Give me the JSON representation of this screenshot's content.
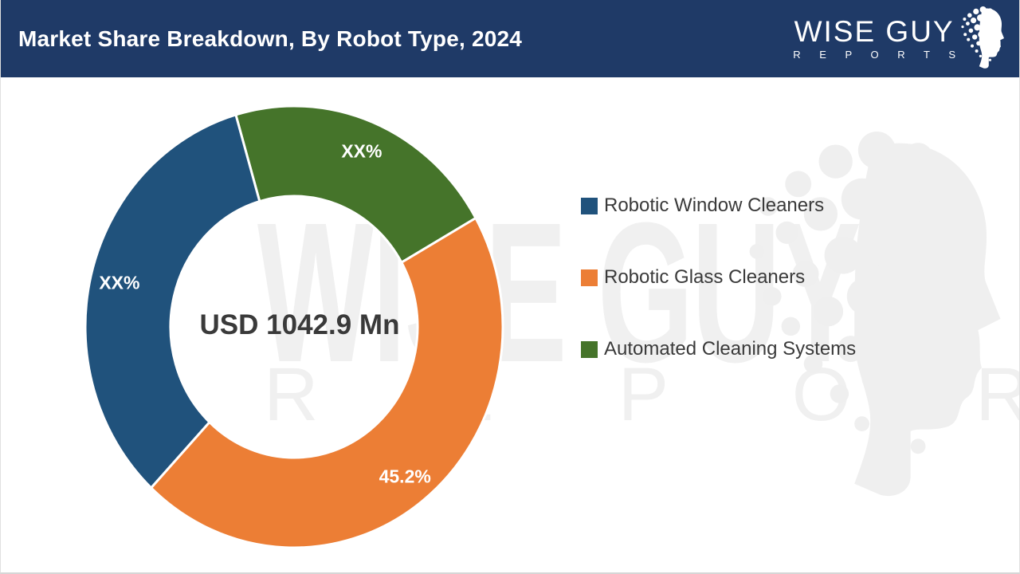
{
  "header": {
    "title": "Market Share Breakdown, By Robot Type, 2024",
    "bg_color": "#1f3a67",
    "logo": {
      "line1": "WISE GUY",
      "line2": "REPORTS"
    }
  },
  "watermark": {
    "line1": "WISE GUY",
    "line2": "REPORTS"
  },
  "chart_data": {
    "type": "pie",
    "subtype": "donut",
    "title": "Market Share Breakdown, By Robot Type, 2024",
    "center_label": "USD 1042.9 Mn",
    "units": "percent share of USD 1042.9 Mn",
    "start_angle_deg": -16.2,
    "slices": [
      {
        "name": "Automated Cleaning Systems",
        "label": "XX%",
        "pct": 21.3,
        "color": "#45742a"
      },
      {
        "name": "Robotic Glass Cleaners",
        "label": "45.2%",
        "pct": 45.2,
        "color": "#ec7e35"
      },
      {
        "name": "Robotic Window Cleaners",
        "label": "XX%",
        "pct": 33.5,
        "color": "#20527c"
      }
    ],
    "legend": [
      {
        "label": "Robotic Window Cleaners",
        "color": "#20527c"
      },
      {
        "label": "Robotic Glass Cleaners",
        "color": "#ec7e35"
      },
      {
        "label": "Automated Cleaning Systems",
        "color": "#45742a"
      }
    ],
    "legend_position": "right"
  }
}
